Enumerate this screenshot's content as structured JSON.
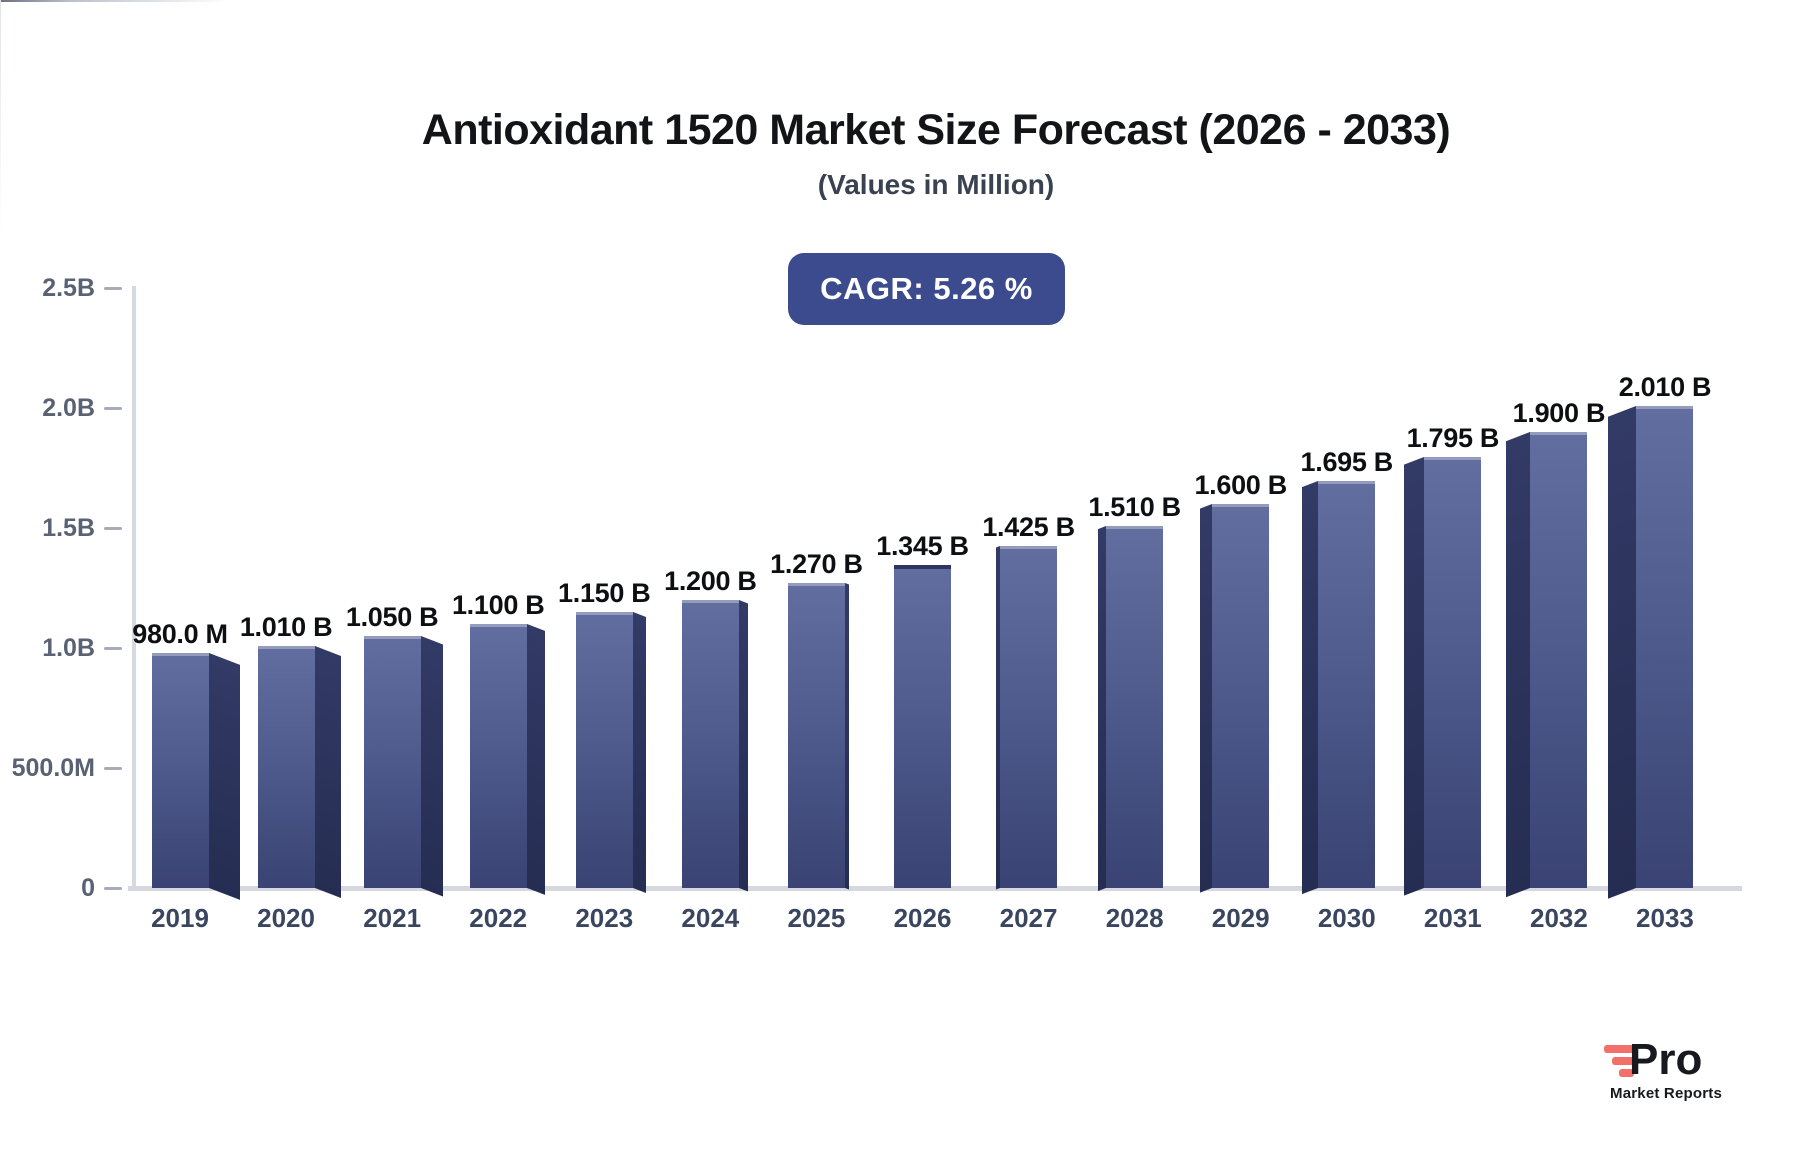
{
  "header": {
    "title": "Antioxidant 1520 Market Size Forecast (2026 - 2033)",
    "subtitle": "(Values in Million)"
  },
  "badge": {
    "label": "CAGR: 5.26 %"
  },
  "logo": {
    "name": "Pro",
    "tagline": "Market Reports"
  },
  "colors": {
    "bar_front_top": "#626e9f",
    "bar_front_bottom": "#3a4373",
    "bar_side": "#2c355d",
    "badge_background": "#3c4b8e",
    "badge_text": "#ffffff",
    "axis_line": "#d7d9e0",
    "tick_dash": "#a6acb8",
    "y_label_text": "#596273",
    "x_label_text": "#3a4660",
    "value_label_text": "#0e0f13",
    "logo_accent": "#f3706a"
  },
  "chart_data": {
    "type": "bar",
    "title": "Antioxidant 1520 Market Size Forecast (2026 - 2033)",
    "subtitle": "(Values in Million)",
    "unit": "Million USD",
    "cagr_percent": 5.26,
    "legend": null,
    "grid": false,
    "categories": [
      "2019",
      "2020",
      "2021",
      "2022",
      "2023",
      "2024",
      "2025",
      "2026",
      "2027",
      "2028",
      "2029",
      "2030",
      "2031",
      "2032",
      "2033"
    ],
    "values_millions": [
      980,
      1010,
      1050,
      1100,
      1150,
      1200,
      1270,
      1345,
      1425,
      1510,
      1600,
      1695,
      1795,
      1900,
      2010
    ],
    "bar_labels": [
      "980.0 M",
      "1.010 B",
      "1.050 B",
      "1.100 B",
      "1.150 B",
      "1.200 B",
      "1.270 B",
      "1.345 B",
      "1.425 B",
      "1.510 B",
      "1.600 B",
      "1.695 B",
      "1.795 B",
      "1.900 B",
      "2.010 B"
    ],
    "yticks": [
      {
        "label": "2.5B",
        "value": 2500
      },
      {
        "label": "2.0B",
        "value": 2000
      },
      {
        "label": "1.5B",
        "value": 1500
      },
      {
        "label": "1.0B",
        "value": 1000
      },
      {
        "label": "500.0M",
        "value": 500
      },
      {
        "label": "0",
        "value": 0
      }
    ],
    "ylim": [
      0,
      2500
    ],
    "xlabel": "",
    "ylabel": ""
  }
}
